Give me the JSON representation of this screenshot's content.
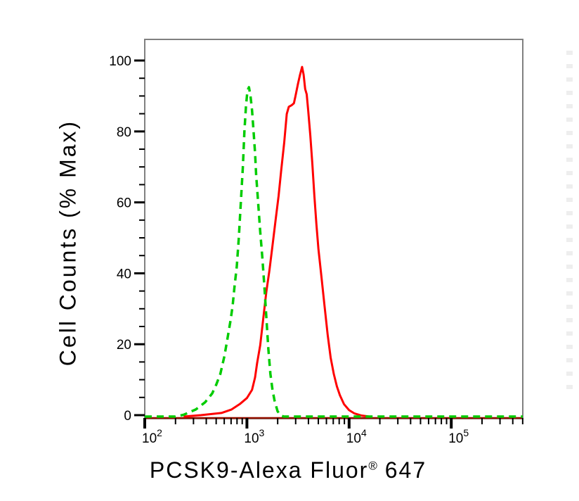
{
  "labels": {
    "ylabel": "Cell Counts (% Max)",
    "xlabel_prefix": "PCSK9-Alexa Fluor",
    "xlabel_registered": "®",
    "xlabel_suffix": " 647"
  },
  "chart_data": {
    "type": "line",
    "subtype": "flow-cytometry-histogram-overlay",
    "title": "",
    "xlabel": "PCSK9-Alexa Fluor® 647",
    "ylabel": "Cell Counts (% Max)",
    "x_scale": "log10",
    "x_range_log10": [
      2.0,
      5.7
    ],
    "ylim": [
      0,
      100
    ],
    "grid": false,
    "legend_position": "none",
    "y_ticks_major": [
      0,
      20,
      40,
      60,
      80,
      100
    ],
    "y_ticks_minor": [
      5,
      10,
      15,
      25,
      30,
      35,
      45,
      50,
      55,
      65,
      70,
      75,
      85,
      90,
      95
    ],
    "x_ticks_major_exponents": [
      2,
      3,
      4,
      5
    ],
    "x_ticks_major_base": "10",
    "x_ticks_minor_log10": [
      2.301,
      2.477,
      2.602,
      2.699,
      2.778,
      2.845,
      2.903,
      2.954,
      3.301,
      3.477,
      3.602,
      3.699,
      3.778,
      3.845,
      3.903,
      3.954,
      4.301,
      4.477,
      4.602,
      4.699,
      4.778,
      4.845,
      4.903,
      4.954,
      5.301,
      5.477,
      5.602,
      5.699
    ],
    "colors": {
      "green_series": "#00CC00",
      "red_series": "#FF0000",
      "frame": "#808080",
      "baseline_dark_red": "#951000",
      "tick": "#000000",
      "text": "#000000"
    },
    "series": [
      {
        "name": "red-solid-histogram",
        "style": "solid",
        "color_key": "red_series",
        "stroke_width": 3,
        "peak": {
          "x": 3470,
          "pct": 98.2
        },
        "points_log10x_pct": [
          [
            2.38,
            0
          ],
          [
            2.55,
            0.4
          ],
          [
            2.75,
            1
          ],
          [
            2.85,
            2
          ],
          [
            2.93,
            3.5
          ],
          [
            3.0,
            5.2
          ],
          [
            3.05,
            7.5
          ],
          [
            3.08,
            11
          ],
          [
            3.1,
            15
          ],
          [
            3.13,
            20
          ],
          [
            3.15,
            25
          ],
          [
            3.17,
            30
          ],
          [
            3.19,
            35
          ],
          [
            3.22,
            41
          ],
          [
            3.25,
            48
          ],
          [
            3.28,
            55
          ],
          [
            3.31,
            62
          ],
          [
            3.335,
            69
          ],
          [
            3.365,
            77
          ],
          [
            3.39,
            85
          ],
          [
            3.41,
            87
          ],
          [
            3.44,
            87.5
          ],
          [
            3.46,
            88
          ],
          [
            3.475,
            90
          ],
          [
            3.5,
            93.5
          ],
          [
            3.52,
            96
          ],
          [
            3.54,
            98.2
          ],
          [
            3.555,
            96
          ],
          [
            3.57,
            92
          ],
          [
            3.585,
            90.5
          ],
          [
            3.6,
            86
          ],
          [
            3.62,
            79
          ],
          [
            3.64,
            71
          ],
          [
            3.66,
            62
          ],
          [
            3.68,
            54
          ],
          [
            3.7,
            47
          ],
          [
            3.73,
            39
          ],
          [
            3.76,
            31
          ],
          [
            3.79,
            23
          ],
          [
            3.82,
            16.5
          ],
          [
            3.85,
            12
          ],
          [
            3.88,
            8.5
          ],
          [
            3.91,
            6
          ],
          [
            3.95,
            3.5
          ],
          [
            4.0,
            1.8
          ],
          [
            4.05,
            0.9
          ],
          [
            4.12,
            0.3
          ],
          [
            4.2,
            0
          ]
        ]
      },
      {
        "name": "green-dashed-histogram",
        "style": "dashed",
        "color_key": "green_series",
        "stroke_width": 3.5,
        "dash_array": "10 7",
        "peak": {
          "x": 1050,
          "pct": 92.5
        },
        "points_log10x_pct": [
          [
            2.0,
            0
          ],
          [
            2.3,
            0
          ],
          [
            2.38,
            0.5
          ],
          [
            2.5,
            2
          ],
          [
            2.59,
            4
          ],
          [
            2.66,
            6.5
          ],
          [
            2.7,
            9
          ],
          [
            2.74,
            12
          ],
          [
            2.78,
            17
          ],
          [
            2.81,
            22
          ],
          [
            2.84,
            27
          ],
          [
            2.86,
            31
          ],
          [
            2.88,
            37
          ],
          [
            2.9,
            42
          ],
          [
            2.92,
            50
          ],
          [
            2.94,
            60
          ],
          [
            2.96,
            70
          ],
          [
            2.975,
            80
          ],
          [
            2.99,
            87
          ],
          [
            3.005,
            91.5
          ],
          [
            3.02,
            92.5
          ],
          [
            3.035,
            90
          ],
          [
            3.05,
            86
          ],
          [
            3.065,
            80
          ],
          [
            3.08,
            74
          ],
          [
            3.09,
            68
          ],
          [
            3.11,
            60
          ],
          [
            3.13,
            52
          ],
          [
            3.15,
            45
          ],
          [
            3.17,
            37
          ],
          [
            3.19,
            28
          ],
          [
            3.21,
            19
          ],
          [
            3.23,
            12
          ],
          [
            3.25,
            7.5
          ],
          [
            3.27,
            4.5
          ],
          [
            3.3,
            1.5
          ],
          [
            3.33,
            0.3
          ],
          [
            3.36,
            0
          ],
          [
            5.7,
            0
          ]
        ]
      }
    ]
  }
}
